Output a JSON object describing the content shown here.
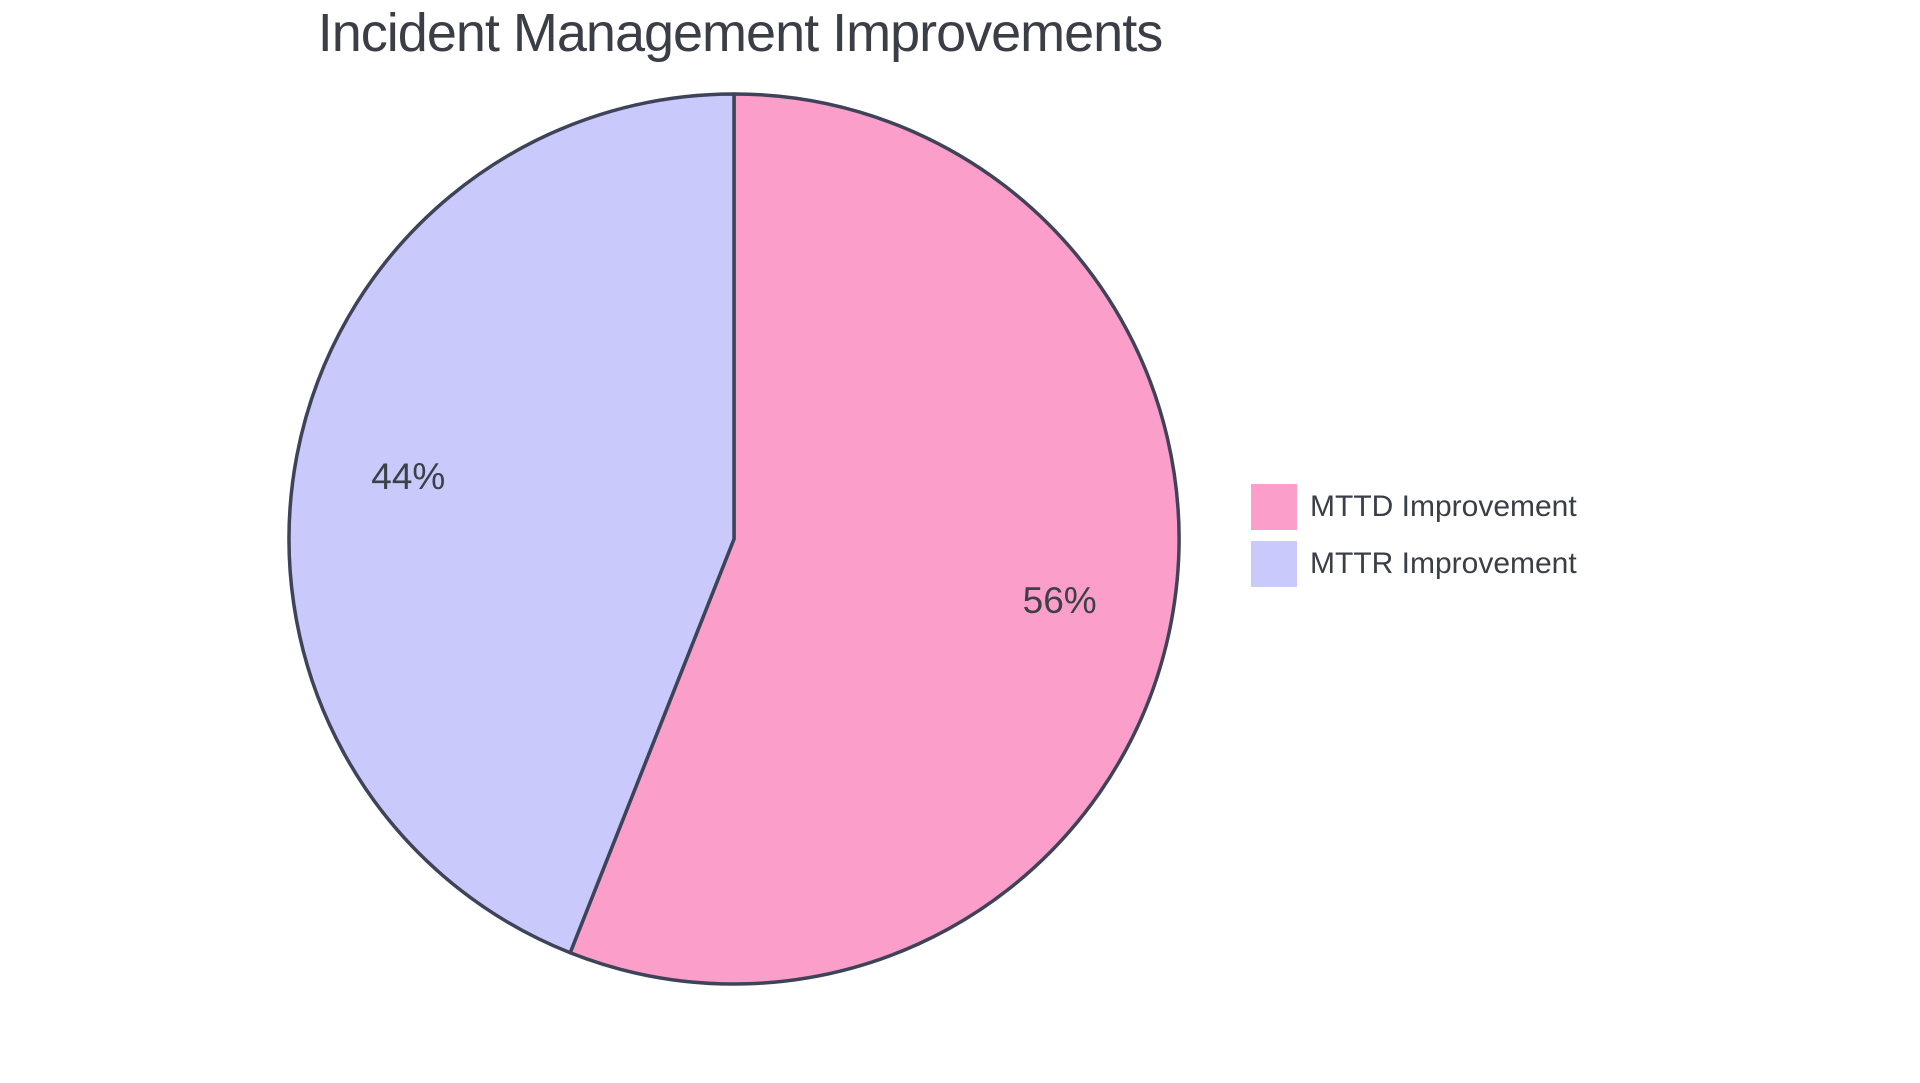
{
  "title": "Incident Management Improvements",
  "chart_data": {
    "type": "pie",
    "title": "Incident Management Improvements",
    "categories": [
      "MTTD Improvement",
      "MTTR Improvement"
    ],
    "values": [
      56,
      44
    ],
    "labels": [
      "56%",
      "44%"
    ],
    "colors": [
      "#FB9EC9",
      "#C9C9FB"
    ],
    "outline_color": "#3E4359",
    "label_color": "#3C4047",
    "start_angle_deg": -90,
    "direction": "clockwise",
    "legend_position": "right",
    "background": "#FFFFFF"
  },
  "legend": {
    "items": [
      {
        "label": "MTTD Improvement",
        "color": "#FB9EC9"
      },
      {
        "label": "MTTR Improvement",
        "color": "#C9C9FB"
      }
    ]
  }
}
